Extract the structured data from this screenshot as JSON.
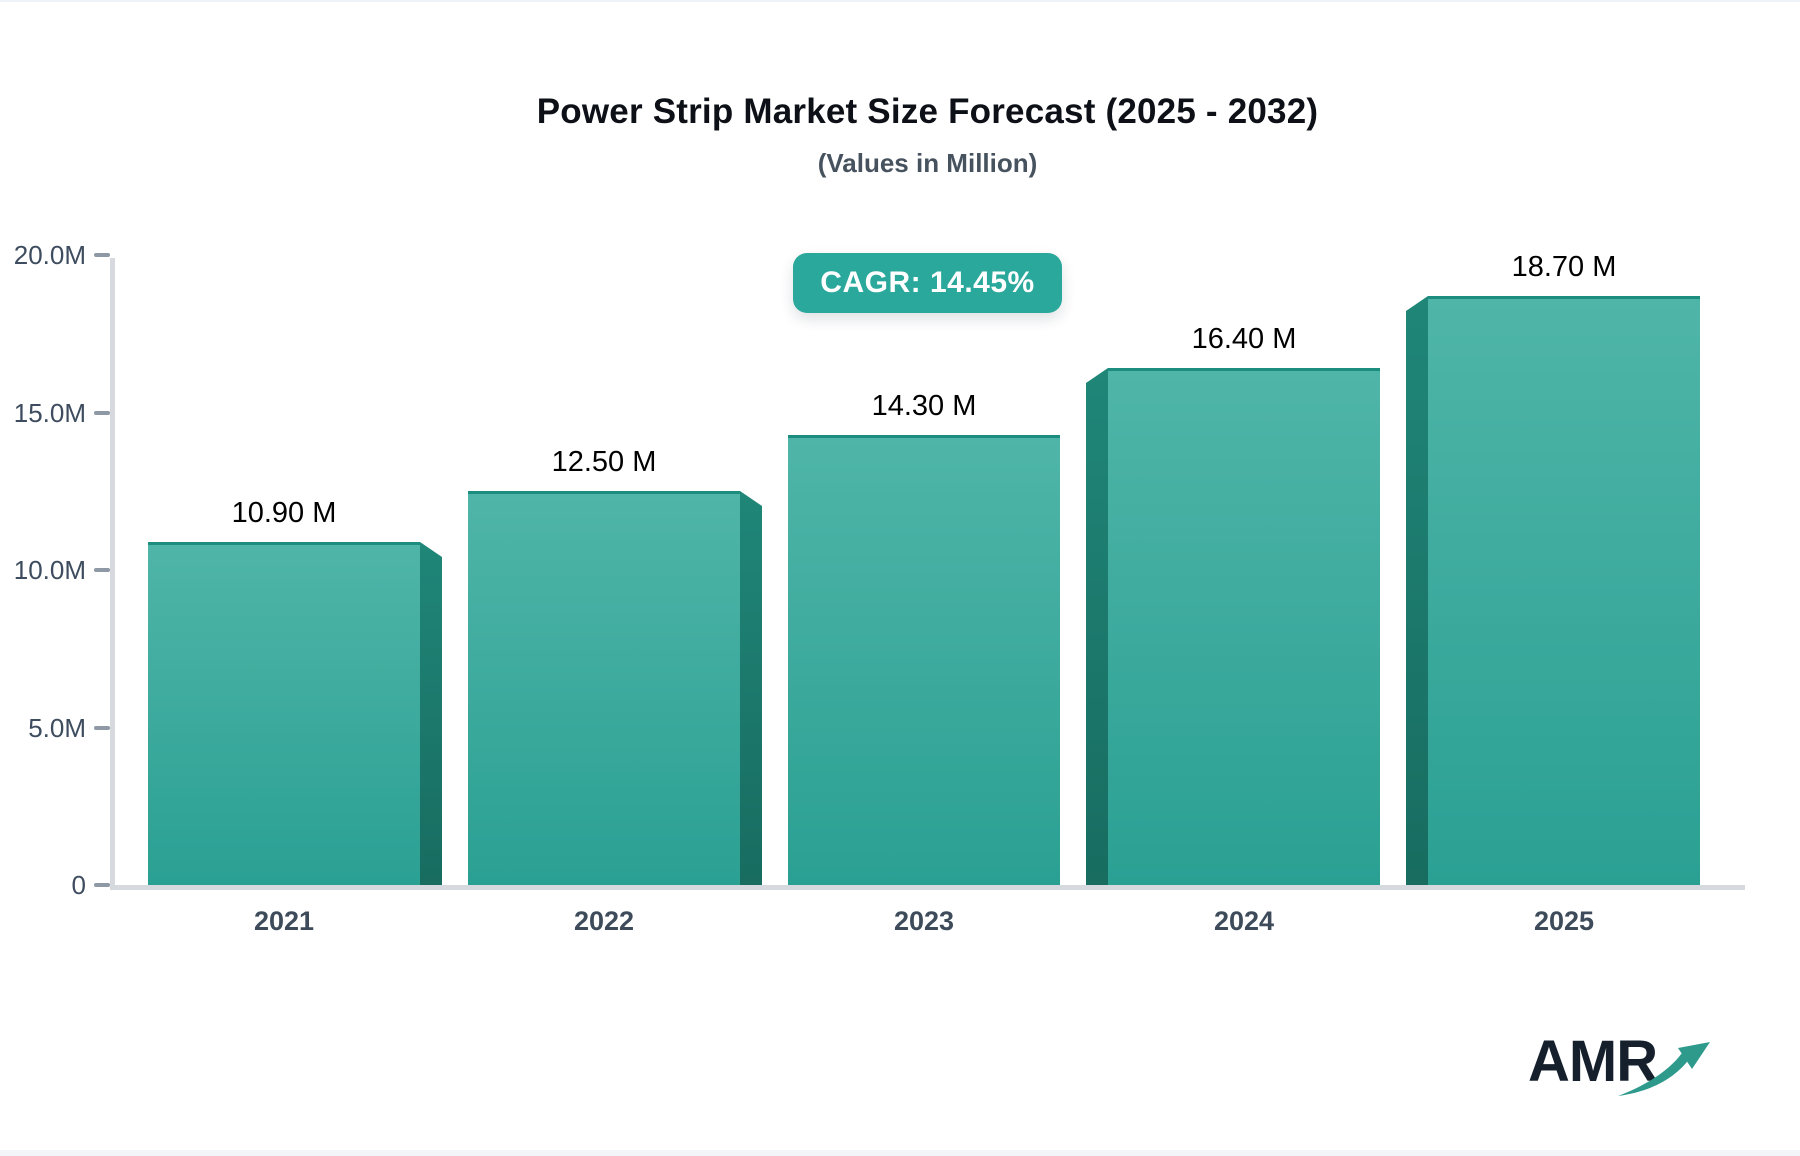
{
  "header": {
    "title": "Power Strip Market Size Forecast (2025 - 2032)",
    "subtitle": "(Values in Million)",
    "cagr_label": "CAGR: 14.45%"
  },
  "chart_data": {
    "type": "bar",
    "title": "Power Strip Market Size Forecast (2025 - 2032)",
    "subtitle": "(Values in Million)",
    "categories": [
      "2021",
      "2022",
      "2023",
      "2024",
      "2025"
    ],
    "values": [
      10.9,
      12.5,
      14.3,
      16.4,
      18.7
    ],
    "value_labels": [
      "10.90 M",
      "12.50 M",
      "14.30 M",
      "16.40 M",
      "18.70 M"
    ],
    "annotation": "CAGR: 14.45%",
    "xlabel": "",
    "ylabel": "",
    "ylim": [
      0,
      20
    ],
    "yticks": [
      0,
      5,
      10,
      15,
      20
    ],
    "ytick_labels": [
      "0",
      "5.0M",
      "10.0M",
      "15.0M",
      "20.0M"
    ],
    "grid": false,
    "legend": false,
    "bar_style": "3d-perspective",
    "colors": {
      "bar_top": "#4fb5a8",
      "bar_bottom": "#2aa093",
      "bar_top_edge": "#1d8d7f",
      "bar_side": "#1e7e71",
      "axis_line": "#d6d9de",
      "tick_mark": "#8e99a5",
      "tick_label": "#3d4c5e",
      "value_label": "#000000",
      "badge_bg": "#2aa89b",
      "badge_text": "#ffffff"
    }
  },
  "logo": {
    "text": "AMR",
    "arrow_icon": "growth-arrow-icon",
    "color": "#15202c",
    "arrow_color": "#2e9a8c"
  }
}
